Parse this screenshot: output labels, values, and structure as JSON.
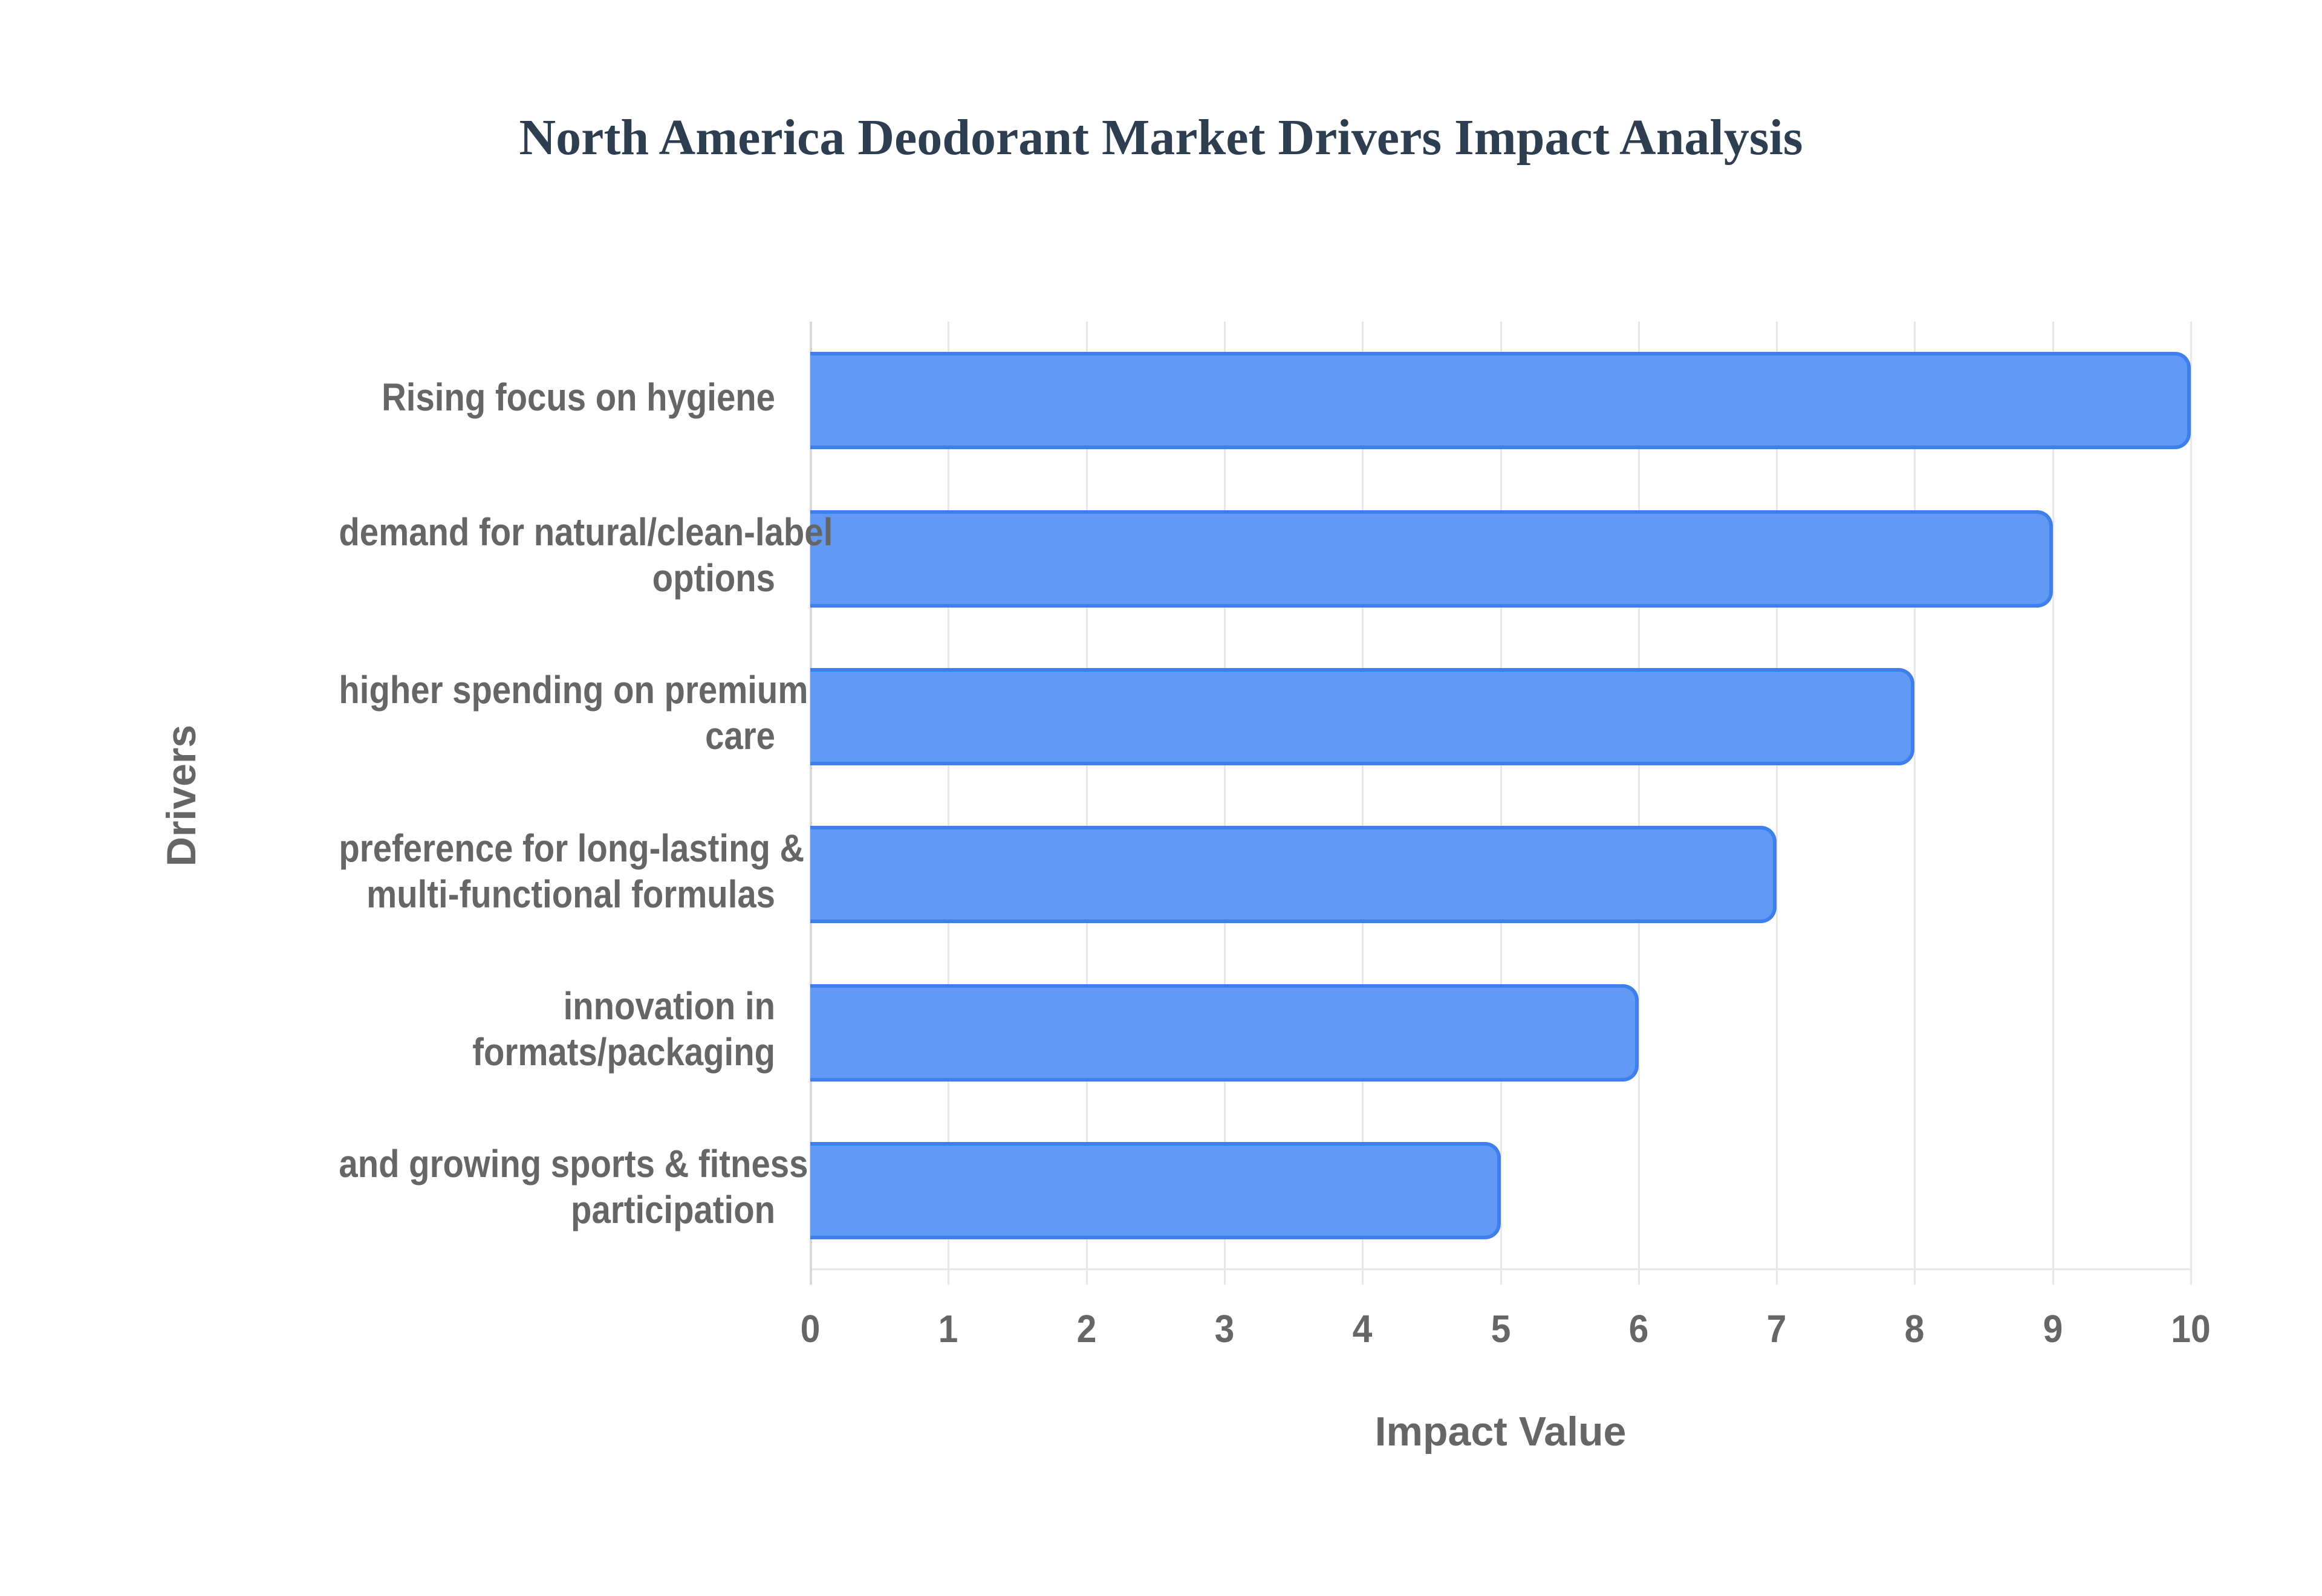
{
  "title": "North America Deodorant Market Drivers Impact Analysis",
  "x_axis": {
    "title": "Impact Value",
    "ticks": [
      "0",
      "1",
      "2",
      "3",
      "4",
      "5",
      "6",
      "7",
      "8",
      "9",
      "10"
    ]
  },
  "y_axis": {
    "title": "Drivers"
  },
  "categories": [
    {
      "label": "Rising focus on hygiene",
      "lines": [
        "Rising focus on hygiene"
      ],
      "value": 10
    },
    {
      "label": "demand for natural/clean-label options",
      "lines": [
        "demand for natural/clean-label",
        "options"
      ],
      "value": 9
    },
    {
      "label": "higher spending on premium care",
      "lines": [
        "higher spending on premium",
        "care"
      ],
      "value": 8
    },
    {
      "label": "preference for long-lasting & multi-functional formulas",
      "lines": [
        "preference for long-lasting &",
        "multi-functional formulas"
      ],
      "value": 7
    },
    {
      "label": "innovation in formats/packaging",
      "lines": [
        "innovation in",
        "formats/packaging"
      ],
      "value": 6
    },
    {
      "label": "and growing sports & fitness participation",
      "lines": [
        "and growing sports & fitness",
        "participation"
      ],
      "value": 5
    }
  ],
  "colors": {
    "bar_fill": "#6199f5",
    "bar_border": "#3e7fee",
    "title": "#2c3e50",
    "axis_text": "#666666",
    "grid": "#e8e8e8"
  },
  "chart_data": {
    "type": "bar",
    "orientation": "horizontal",
    "title": "North America Deodorant Market Drivers Impact Analysis",
    "xlabel": "Impact Value",
    "ylabel": "Drivers",
    "categories": [
      "Rising focus on hygiene",
      "demand for natural/clean-label options",
      "higher spending on premium care",
      "preference for long-lasting & multi-functional formulas",
      "innovation in formats/packaging",
      "and growing sports & fitness participation"
    ],
    "values": [
      10,
      9,
      8,
      7,
      6,
      5
    ],
    "xlim": [
      0,
      10
    ],
    "xticks": [
      0,
      1,
      2,
      3,
      4,
      5,
      6,
      7,
      8,
      9,
      10
    ],
    "grid": true,
    "legend": null
  }
}
